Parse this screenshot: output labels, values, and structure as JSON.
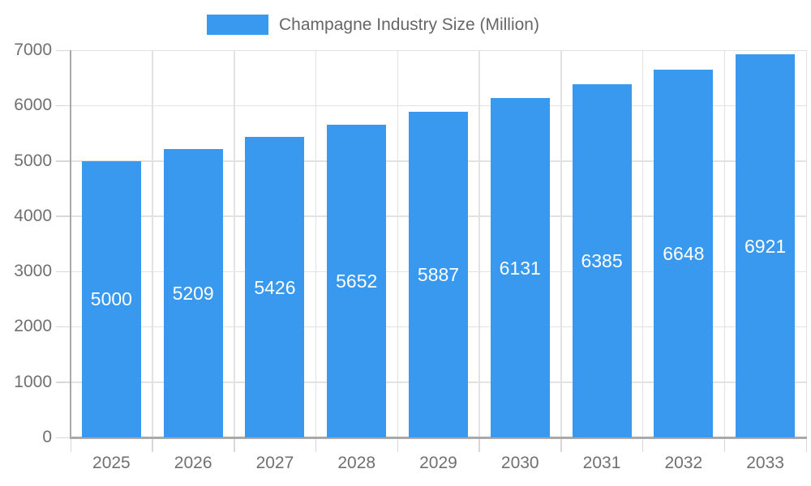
{
  "chart_data": {
    "type": "bar",
    "title": "Champagne Industry Size (Million)",
    "legend_position": "top",
    "categories": [
      "2025",
      "2026",
      "2027",
      "2028",
      "2029",
      "2030",
      "2031",
      "2032",
      "2033"
    ],
    "series": [
      {
        "name": "Champagne Industry Size (Million)",
        "values": [
          5000,
          5209,
          5426,
          5652,
          5887,
          6131,
          6385,
          6648,
          6921
        ]
      }
    ],
    "data_labels": [
      "5000",
      "5209",
      "5426",
      "5652",
      "5887",
      "6131",
      "6385",
      "6648",
      "6921"
    ],
    "xlabel": "",
    "ylabel": "",
    "ylim": [
      0,
      7000
    ],
    "ytick_step": 1000,
    "ytick_labels": [
      "0",
      "1000",
      "2000",
      "3000",
      "4000",
      "5000",
      "6000",
      "7000"
    ],
    "grid": true,
    "colors": {
      "bar": "#3999ee",
      "bar_label": "#ffffff",
      "grid_line": "#e2e2e2",
      "tick_line": "#d8d8d8",
      "axis_line": "#a9a9a9",
      "tick_label": "#707070",
      "legend_text": "#666666",
      "background": "#ffffff"
    }
  }
}
